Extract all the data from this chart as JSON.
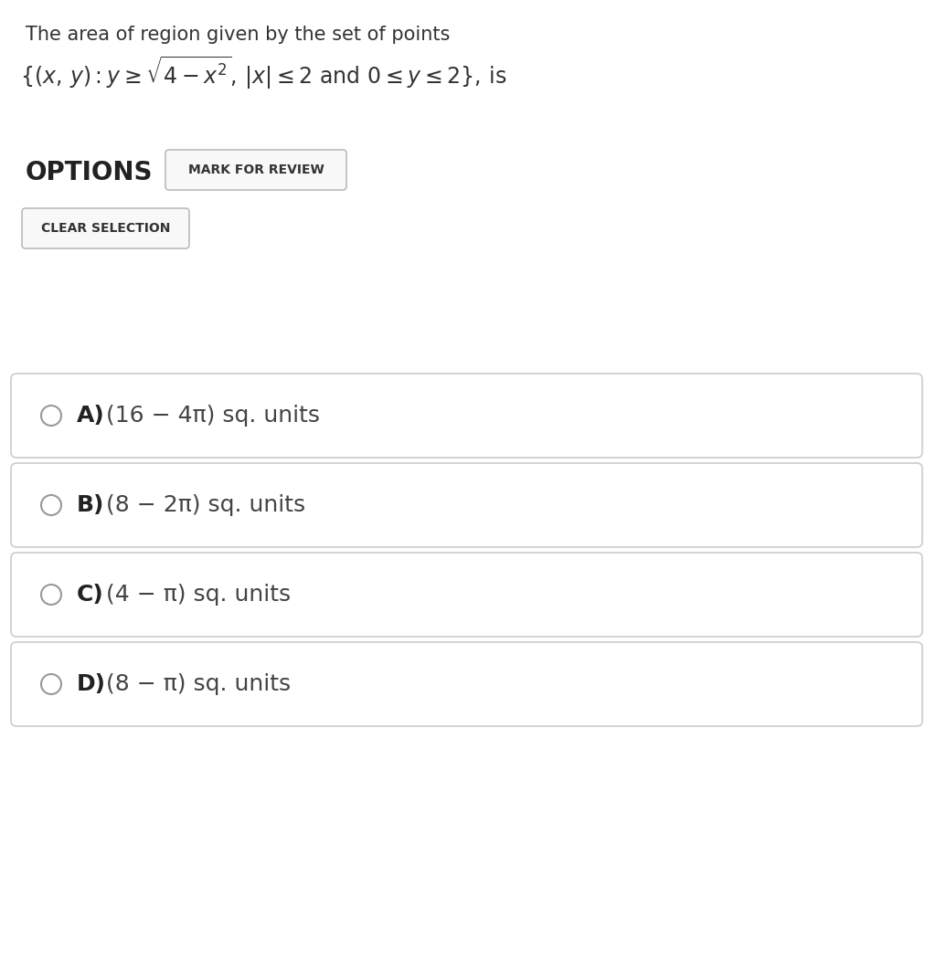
{
  "bg_color": "#ffffff",
  "question_line1": "The area of region given by the set of points",
  "question_line2": "{(x, y) : y ≥ √(4 − x²), |x| ≤ 2  and 0 ≤ y ≤ 2}, is",
  "options_label": "OPTIONS",
  "mark_for_review": "MARK FOR REVIEW",
  "clear_selection": "CLEAR SELECTION",
  "options": [
    {
      "letter": "A)",
      "text": "(16 − 4π) sq. units"
    },
    {
      "letter": "B)",
      "text": "(8 − 2π) sq. units"
    },
    {
      "letter": "C)",
      "text": "(4 − π) sq. units"
    },
    {
      "letter": "D)",
      "text": "(8 − π) sq. units"
    }
  ],
  "text_color": "#333333",
  "option_text_color": "#444444",
  "border_color": "#cccccc",
  "button_border_color": "#bbbbbb",
  "button_bg": "#f8f8f8"
}
